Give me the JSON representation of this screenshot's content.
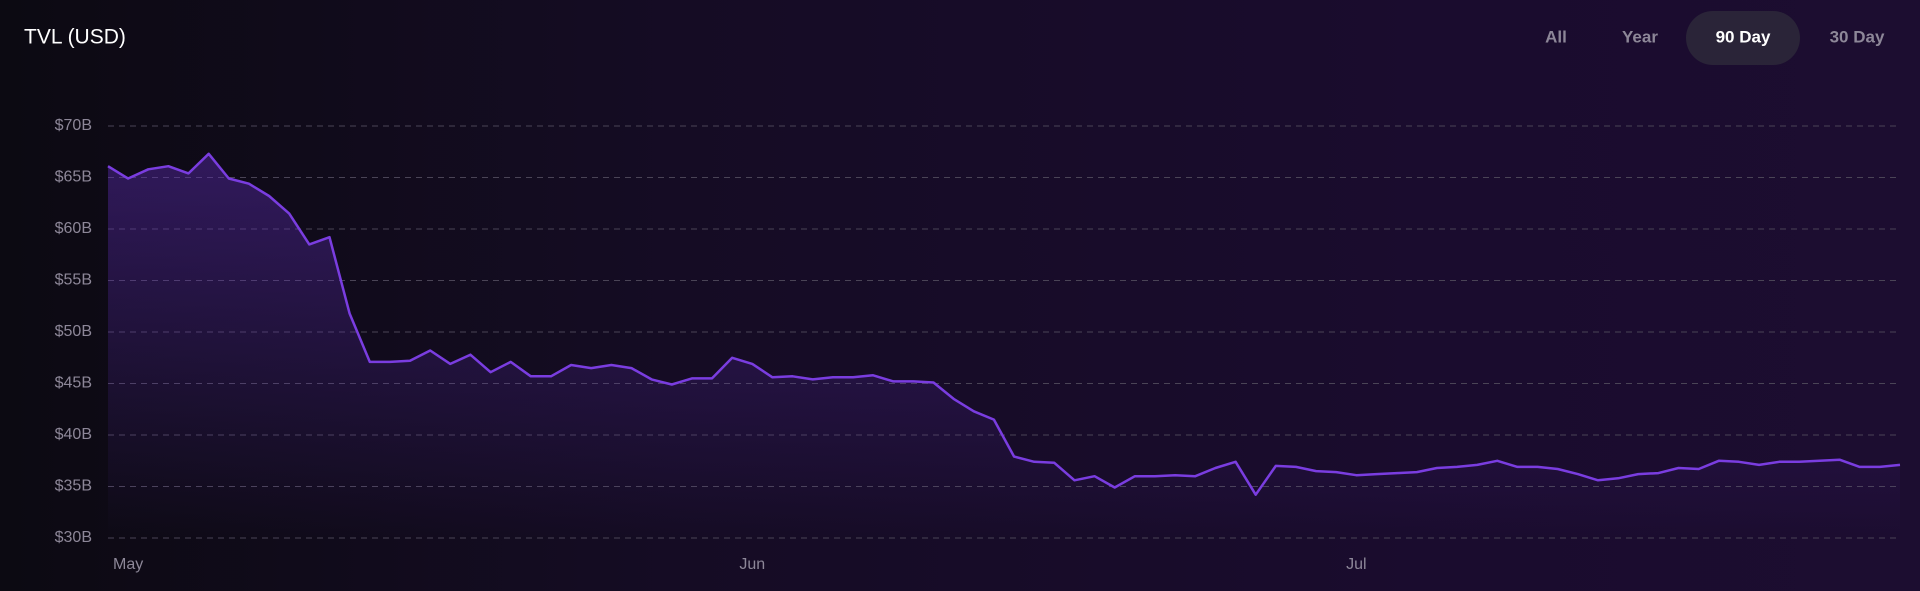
{
  "chart_data": {
    "type": "area",
    "title": "TVL (USD)",
    "categories": [
      null,
      "May",
      null,
      null,
      null,
      null,
      null,
      null,
      null,
      null,
      null,
      null,
      null,
      null,
      null,
      null,
      null,
      null,
      null,
      null,
      null,
      null,
      null,
      null,
      null,
      null,
      null,
      null,
      null,
      null,
      null,
      null,
      "Jun",
      null,
      null,
      null,
      null,
      null,
      null,
      null,
      null,
      null,
      null,
      null,
      null,
      null,
      null,
      null,
      null,
      null,
      null,
      null,
      null,
      null,
      null,
      null,
      null,
      null,
      null,
      null,
      null,
      null,
      "Jul",
      null,
      null,
      null,
      null,
      null,
      null,
      null,
      null,
      null,
      null,
      null,
      null,
      null,
      null,
      null,
      null,
      null,
      null,
      null,
      null,
      null,
      null,
      null,
      null,
      null,
      null,
      null
    ],
    "values": [
      66.1,
      64.9,
      65.8,
      66.1,
      65.4,
      67.3,
      64.9,
      64.4,
      63.2,
      61.5,
      58.5,
      59.2,
      51.8,
      47.1,
      47.1,
      47.2,
      48.2,
      46.9,
      47.8,
      46.1,
      47.1,
      45.7,
      45.7,
      46.8,
      46.5,
      46.8,
      46.5,
      45.4,
      44.9,
      45.5,
      45.5,
      47.5,
      46.9,
      45.6,
      45.7,
      45.4,
      45.6,
      45.6,
      45.8,
      45.2,
      45.2,
      45.1,
      43.5,
      42.3,
      41.5,
      37.9,
      37.4,
      37.3,
      35.6,
      36.0,
      34.9,
      36.0,
      36.0,
      36.1,
      36.0,
      36.8,
      37.4,
      34.2,
      37.0,
      36.9,
      36.5,
      36.4,
      36.1,
      36.2,
      36.3,
      36.4,
      36.8,
      36.9,
      37.1,
      37.5,
      36.9,
      36.9,
      36.7,
      36.2,
      35.6,
      35.8,
      36.2,
      36.3,
      36.8,
      36.7,
      37.5,
      37.4,
      37.1,
      37.4,
      37.4,
      37.5,
      37.6,
      36.9,
      36.9,
      37.1
    ],
    "color": "#7a3de0",
    "ylim": [
      30,
      70
    ],
    "yticks": [
      {
        "value": 30,
        "label": "$30B"
      },
      {
        "value": 35,
        "label": "$35B"
      },
      {
        "value": 40,
        "label": "$40B"
      },
      {
        "value": 45,
        "label": "$45B"
      },
      {
        "value": 50,
        "label": "$50B"
      },
      {
        "value": 55,
        "label": "$55B"
      },
      {
        "value": 60,
        "label": "$60B"
      },
      {
        "value": 65,
        "label": "$65B"
      },
      {
        "value": 70,
        "label": "$70B"
      }
    ],
    "grid": true
  },
  "controls": {
    "timeframes": [
      "All",
      "Year",
      "90 Day",
      "30 Day"
    ],
    "selected": 2
  }
}
